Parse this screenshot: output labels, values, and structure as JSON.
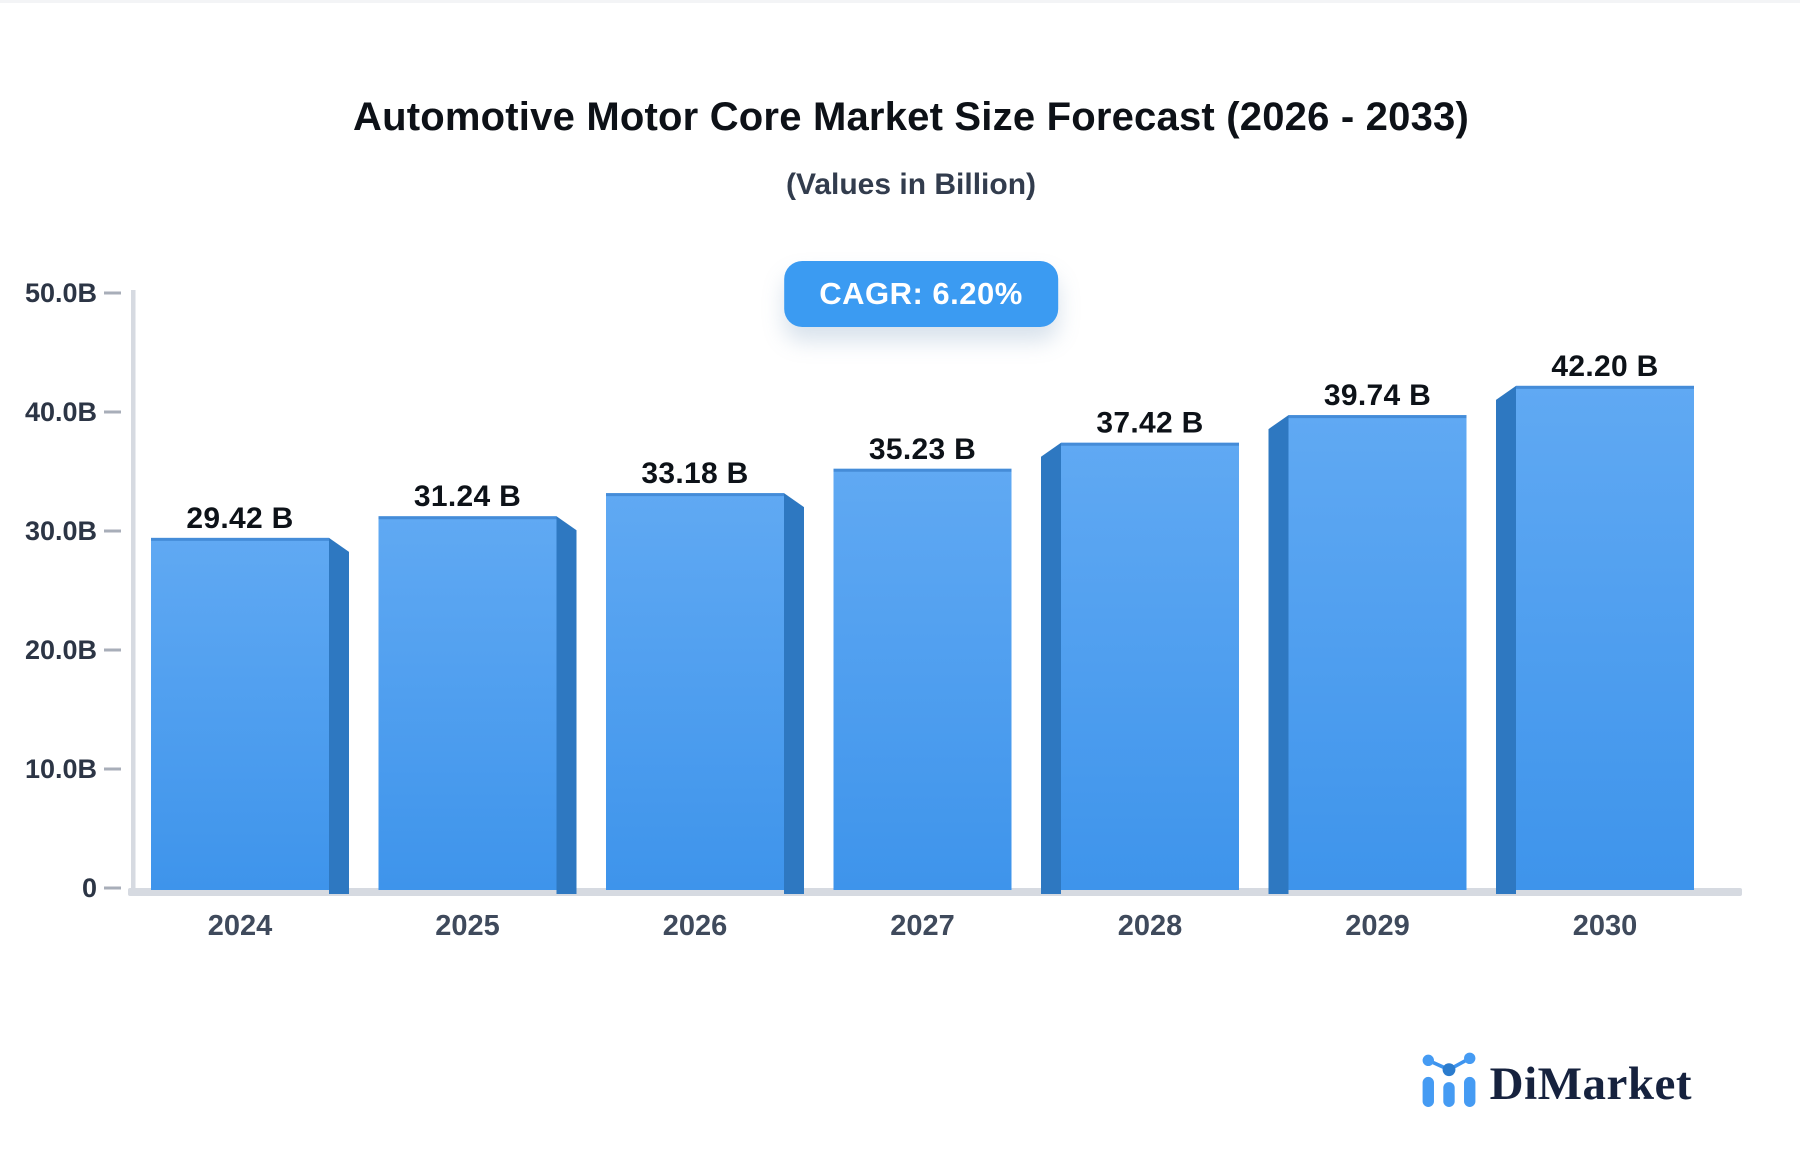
{
  "header": {
    "title": "Automotive Motor Core Market Size Forecast (2026 - 2033)",
    "subtitle": "(Values in Billion)",
    "cagr_label": "CAGR: 6.20%"
  },
  "chart_data": {
    "type": "bar",
    "title": "Automotive Motor Core Market Size Forecast (2026 - 2033)",
    "subtitle": "(Values in Billion)",
    "cagr_text": "CAGR: 6.20%",
    "categories": [
      "2024",
      "2025",
      "2026",
      "2027",
      "2028",
      "2029",
      "2030"
    ],
    "values": [
      29.42,
      31.24,
      33.18,
      35.23,
      37.42,
      39.74,
      42.2
    ],
    "value_labels": [
      "29.42 B",
      "31.24 B",
      "33.18 B",
      "35.23 B",
      "37.42 B",
      "39.74 B",
      "42.20 B"
    ],
    "ylim": [
      0,
      50
    ],
    "ytick_values": [
      0,
      10,
      20,
      30,
      40,
      50
    ],
    "ytick_labels": [
      "0",
      "10.0B",
      "20.0B",
      "30.0B",
      "40.0B",
      "50.0B"
    ],
    "grid": false,
    "legend": "none",
    "bar_style": "3d-perspective",
    "colors": {
      "bar_top": "#60a9f3",
      "bar_bottom": "#3e94eb",
      "bar_side": "#2e78c1",
      "bar_edge": "#4188d4",
      "axis": "#d6dae1",
      "tick": "#a8aeb9",
      "badge": "#3b9bf2"
    }
  },
  "branding": {
    "logo_text": "DiMarket",
    "logo_icon": "bar-line-chart-icon",
    "logo_color": "#459bf3",
    "logo_text_color": "#16223e"
  }
}
